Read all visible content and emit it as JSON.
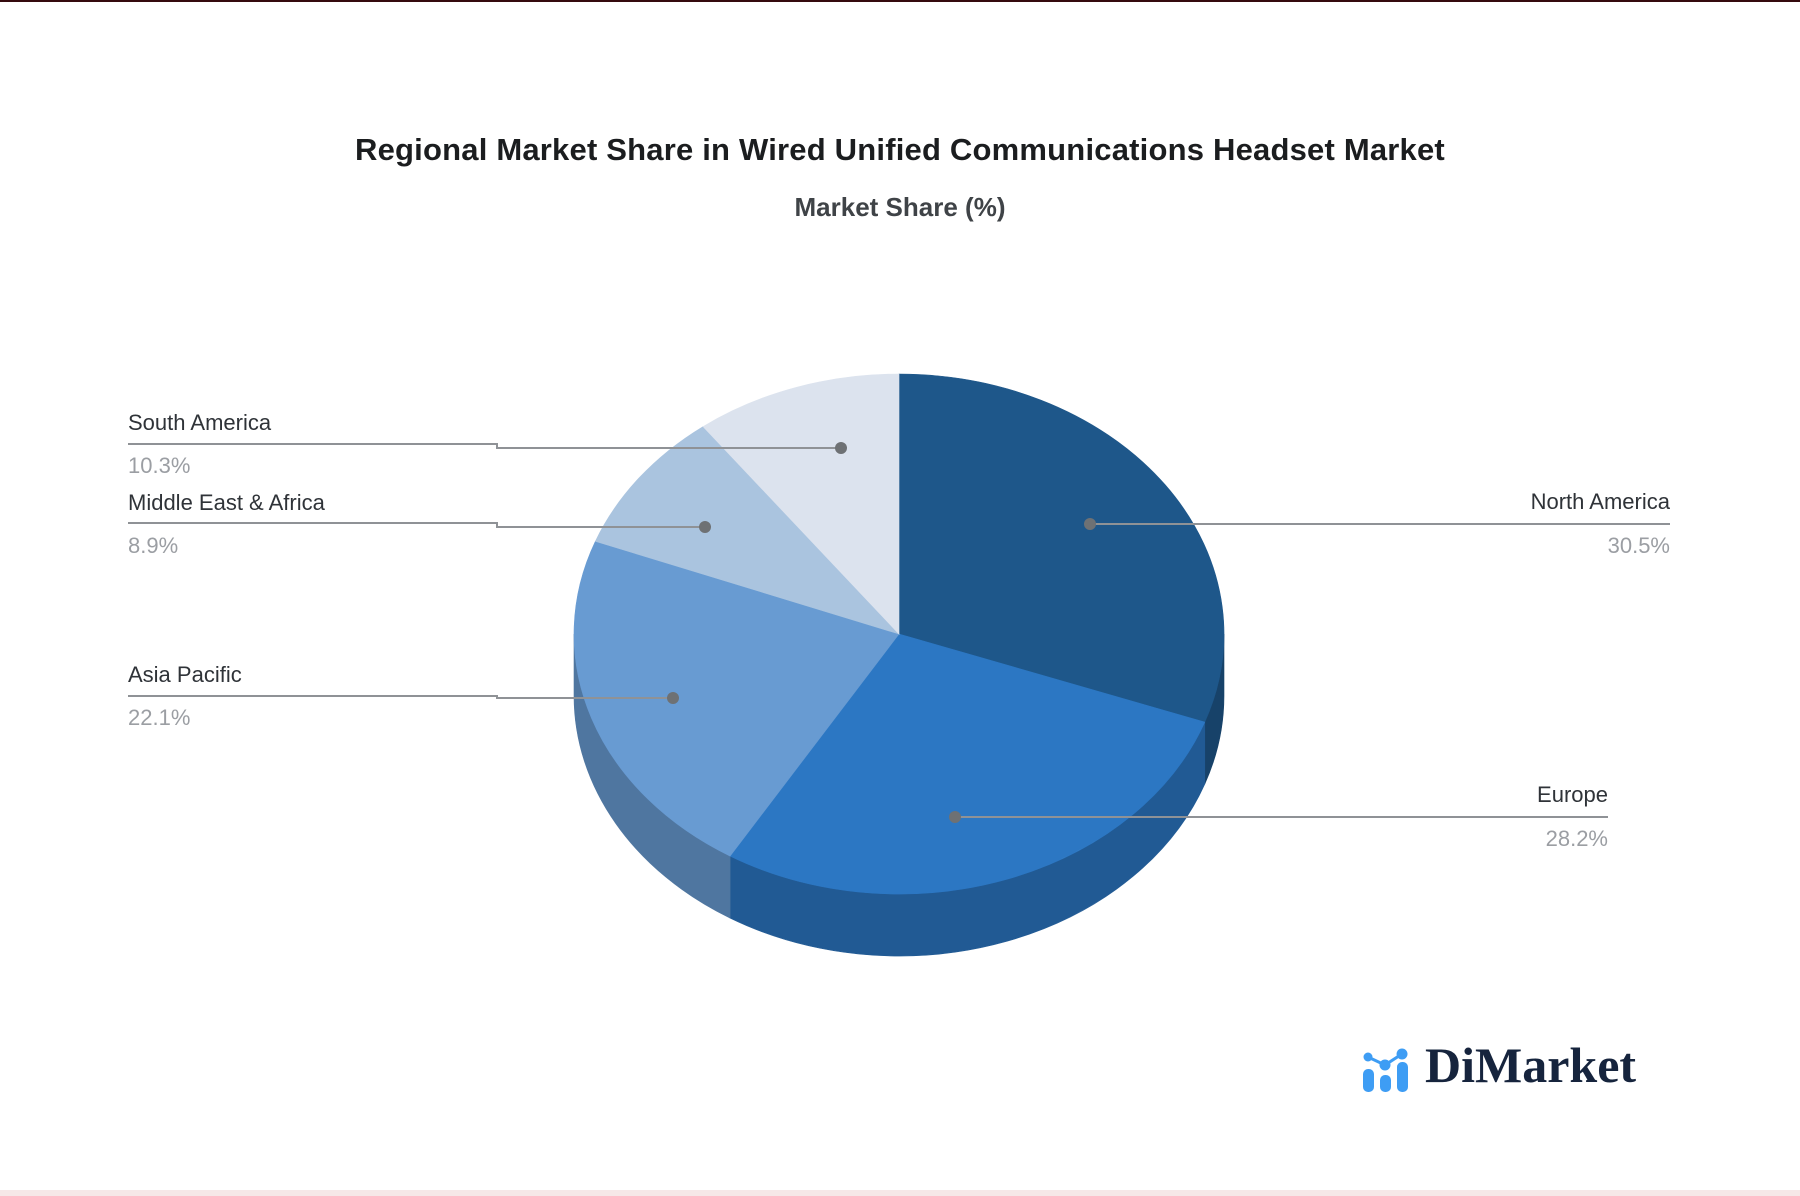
{
  "page": {
    "top_border_color": "#350a0e",
    "bottom_border_color": "#f6e8e8",
    "background_color": "#ffffff"
  },
  "chart_data": {
    "type": "pie",
    "style": "3d",
    "title": "Regional Market Share in Wired Unified Communications Headset Market",
    "subtitle": "Market Share (%)",
    "unit": "%",
    "direction": "clockwise",
    "start_angle": "12-o-clock",
    "legend_position": "leader-line-labels",
    "slices": [
      {
        "label": "North America",
        "value": 30.5,
        "display": "30.5%",
        "color": "#1e578a"
      },
      {
        "label": "Europe",
        "value": 28.2,
        "display": "28.2%",
        "color": "#2c77c3"
      },
      {
        "label": "Asia Pacific",
        "value": 22.1,
        "display": "22.1%",
        "color": "#689bd2"
      },
      {
        "label": "Middle East & Africa",
        "value": 8.9,
        "display": "8.9%",
        "color": "#aac4df"
      },
      {
        "label": "South America",
        "value": 10.3,
        "display": "10.3%",
        "color": "#dce3ee"
      }
    ],
    "leader_line_color": "#8f9296",
    "leader_dot_color": "#6e7174",
    "label_name_color": "#2f3338",
    "label_value_color": "#9b9ea3"
  },
  "branding": {
    "logo_text": "DiMarket",
    "logo_text_color": "#16243d",
    "icon": "bar-chart-icon",
    "icon_color": "#3e9df4"
  }
}
